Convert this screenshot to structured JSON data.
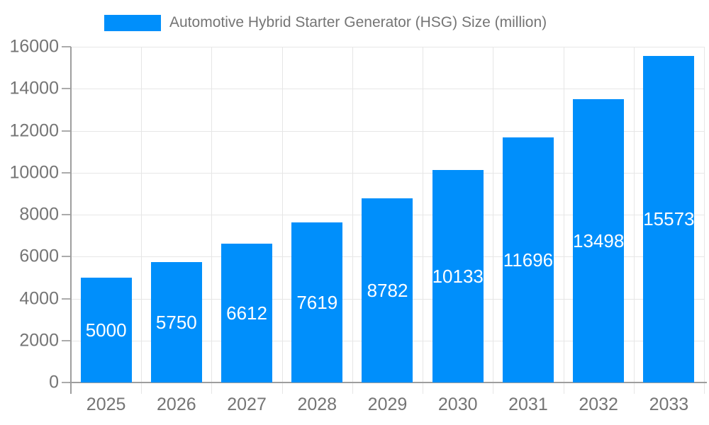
{
  "legend": {
    "label": "Automotive Hybrid Starter Generator (HSG) Size (million)"
  },
  "chart_data": {
    "type": "bar",
    "title": "",
    "categories": [
      "2025",
      "2026",
      "2027",
      "2028",
      "2029",
      "2030",
      "2031",
      "2032",
      "2033"
    ],
    "values": [
      5000,
      5750,
      6612,
      7619,
      8782,
      10133,
      11696,
      13498,
      15573
    ],
    "series_name": "Automotive Hybrid Starter Generator (HSG) Size (million)",
    "xlabel": "",
    "ylabel": "",
    "ylim": [
      0,
      16000
    ],
    "ytick_step": 2000,
    "yticks": [
      0,
      2000,
      4000,
      6000,
      8000,
      10000,
      12000,
      14000,
      16000
    ],
    "grid": true,
    "legend_position": "top-left",
    "data_labels": "inside-center",
    "colors": {
      "bar": "#008FFB",
      "data_label": "#FFFFFF",
      "axis_text": "#757575",
      "grid_line": "#E6E6E6",
      "axis_line": "#9E9E9E"
    }
  }
}
